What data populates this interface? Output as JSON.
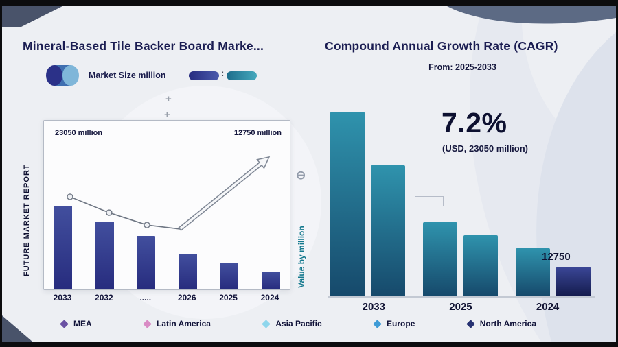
{
  "header_left": {
    "title": "Mineral-Based Tile Backer Board Marke...",
    "legend_label": "Market Size million"
  },
  "header_right": {
    "title": "Compound Annual Growth Rate (CAGR)",
    "subtitle": "From: 2025-2033"
  },
  "cagr": {
    "value": "7.2%",
    "note": "(USD, 23050 million)"
  },
  "left_panel": {
    "top_left": "23050 million",
    "top_right": "12750 million",
    "side_label": "FUTURE MARKET REPORT",
    "value_axis_label": "Value by million",
    "x_labels": [
      "2033",
      "2032",
      ".....",
      "2026",
      "2025",
      "2024"
    ],
    "plus_glyph": "+",
    "minus_glyph": "⊖",
    "hash_glyph": "▦",
    "colon_glyph": ":"
  },
  "right_chart": {
    "x_labels": [
      "2033",
      "2025",
      "2024"
    ],
    "value_label": "12750"
  },
  "legend": {
    "items": [
      {
        "label": "MEA",
        "color": "#6a51a3"
      },
      {
        "label": "Latin America",
        "color": "#d98bc4"
      },
      {
        "label": "Asia Pacific",
        "color": "#8ed6ec"
      },
      {
        "label": "Europe",
        "color": "#3e9bd6"
      },
      {
        "label": "North America",
        "color": "#273272"
      }
    ]
  },
  "colors": {
    "left_bar_top": "#424f9e",
    "left_bar_bottom": "#272c7e",
    "right_bar_top": "#2f93ad",
    "right_bar_bottom": "#16496b",
    "right_bar_dark_top": "#3b4797",
    "right_bar_dark_bottom": "#141b4d",
    "accent_teal": "#15798e",
    "title_navy": "#1b1d52"
  },
  "chart_data": [
    {
      "type": "bar",
      "title": "Market Size million (Future Market Report)",
      "categories": [
        "2033",
        "2032",
        ".....",
        "2026",
        "2025",
        "2024"
      ],
      "series": [
        {
          "name": "Market Size (million)",
          "values": [
            23050,
            20900,
            18900,
            16100,
            14300,
            12750
          ]
        }
      ],
      "ylabel": "Value by million",
      "annotations": [
        "23050 million (2033, top-left)",
        "12750 million (2024, top-right)",
        "rising trend arrow"
      ],
      "ylim": [
        0,
        23050
      ],
      "grid": false,
      "render_heights_pct": [
        100,
        81,
        64,
        43,
        32,
        21
      ],
      "trend_points_pct": [
        [
          10.6,
          45.1
        ],
        [
          26.5,
          54.5
        ],
        [
          41.9,
          61.8
        ],
        [
          55.3,
          64.2
        ],
        [
          91.6,
          21.5
        ]
      ],
      "marker_count": 3
    },
    {
      "type": "bar",
      "title": "Compound Annual Growth Rate (CAGR) From: 2025-2033",
      "categories": [
        "2033",
        "2033",
        "2025",
        "2025",
        "2024",
        "2024"
      ],
      "series": [
        {
          "name": "Value by million",
          "values": [
            23050,
            19500,
            15000,
            13800,
            12900,
            12750
          ]
        }
      ],
      "annotations": [
        "CAGR 7.2% (USD, 23050 million)",
        "12750 at 2024"
      ],
      "ylim": [
        0,
        23050
      ],
      "grid": false,
      "render_heights_pct": [
        100,
        71,
        40,
        33,
        26,
        16
      ]
    }
  ]
}
